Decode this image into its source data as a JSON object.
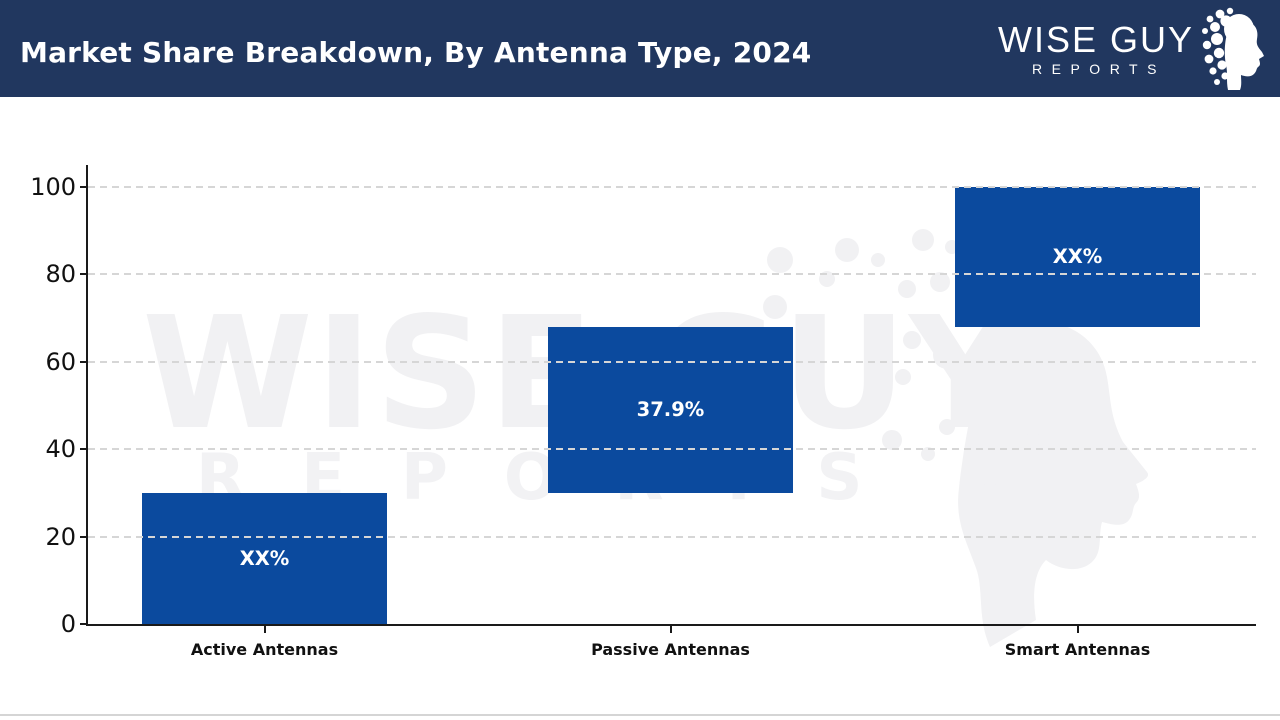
{
  "header": {
    "title": "Market Share Breakdown, By Antenna Type, 2024",
    "logo": {
      "line1": "WISE GUY",
      "line2": "REPORTS"
    }
  },
  "watermark": {
    "line1": "WISE GUY",
    "line2": "REPORTS"
  },
  "chart_data": {
    "type": "bar",
    "variant": "floating-segment-waterfall",
    "title": "Market Share Breakdown, By Antenna Type, 2024",
    "categories": [
      "Active Antennas",
      "Passive Antennas",
      "Smart Antennas"
    ],
    "segments": [
      {
        "category": "Active Antennas",
        "start": 0,
        "end": 30,
        "size": 30,
        "label": "XX%"
      },
      {
        "category": "Passive Antennas",
        "start": 30,
        "end": 67.9,
        "size": 37.9,
        "label": "37.9%"
      },
      {
        "category": "Smart Antennas",
        "start": 67.9,
        "end": 100,
        "size": 32.1,
        "label": "XX%"
      }
    ],
    "xlabel": "",
    "ylabel": "",
    "yticks": [
      0,
      20,
      40,
      60,
      80,
      100
    ],
    "ylim": [
      0,
      105
    ],
    "grid": "horizontal dashed gridlines drawn over bars",
    "legend": "none",
    "bar_color": "#0b4a9e",
    "bar_label_color": "#ffffff"
  },
  "colors": {
    "header_bg": "#21375f",
    "header_text": "#ffffff",
    "bar": "#0b4a9e",
    "grid": "#d6d6d6",
    "axis": "#1a1a1a",
    "watermark": "#f1f1f3",
    "page_bg": "#ffffff",
    "footer_line": "#d5d5d5"
  }
}
